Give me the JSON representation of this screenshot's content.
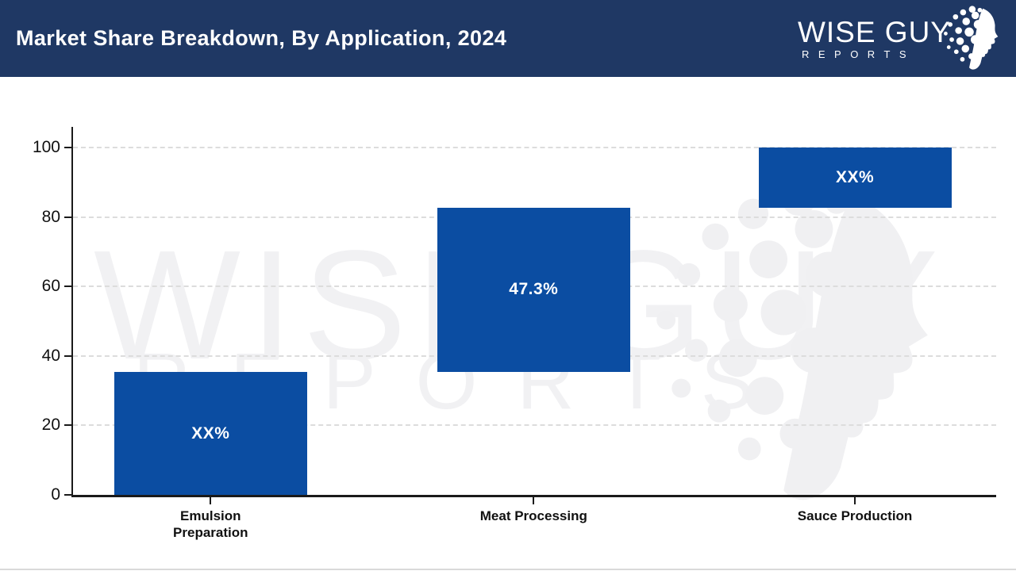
{
  "colors": {
    "header_bg": "#1F3864",
    "bar_blue": "#0B4DA2",
    "watermark_gray": "#F1F1F3",
    "axis_dark": "#1A1A1A",
    "grid_gray": "#DCDCDC"
  },
  "header": {
    "title": "Market Share Breakdown, By Application, 2024",
    "logo_line1": "WISE GUY",
    "logo_line2": "REPORTS"
  },
  "watermark": {
    "line1": "WISE GUY",
    "line2": "REPORTS"
  },
  "chart_data": {
    "type": "bar",
    "subtype": "floating-waterfall",
    "title": "Market Share Breakdown, By Application, 2024",
    "categories": [
      "Emulsion\nPreparation",
      "Meat Processing",
      "Sauce Production"
    ],
    "bars": [
      {
        "category": "Emulsion\nPreparation",
        "base": 0,
        "top": 35.4,
        "height": 35.4,
        "label": "XX%"
      },
      {
        "category": "Meat Processing",
        "base": 35.5,
        "top": 82.8,
        "height": 47.3,
        "label": "47.3%"
      },
      {
        "category": "Sauce Production",
        "base": 82.7,
        "top": 100,
        "height": 17.3,
        "label": "XX%"
      }
    ],
    "xlabel": "",
    "ylabel": "",
    "ylim": [
      0,
      106
    ],
    "yticks": [
      0,
      20,
      40,
      60,
      80,
      100
    ],
    "grid": "horizontal-dashed",
    "legend": "none",
    "bar_color": "#0B4DA2",
    "bar_label_color": "#FFFFFF"
  }
}
